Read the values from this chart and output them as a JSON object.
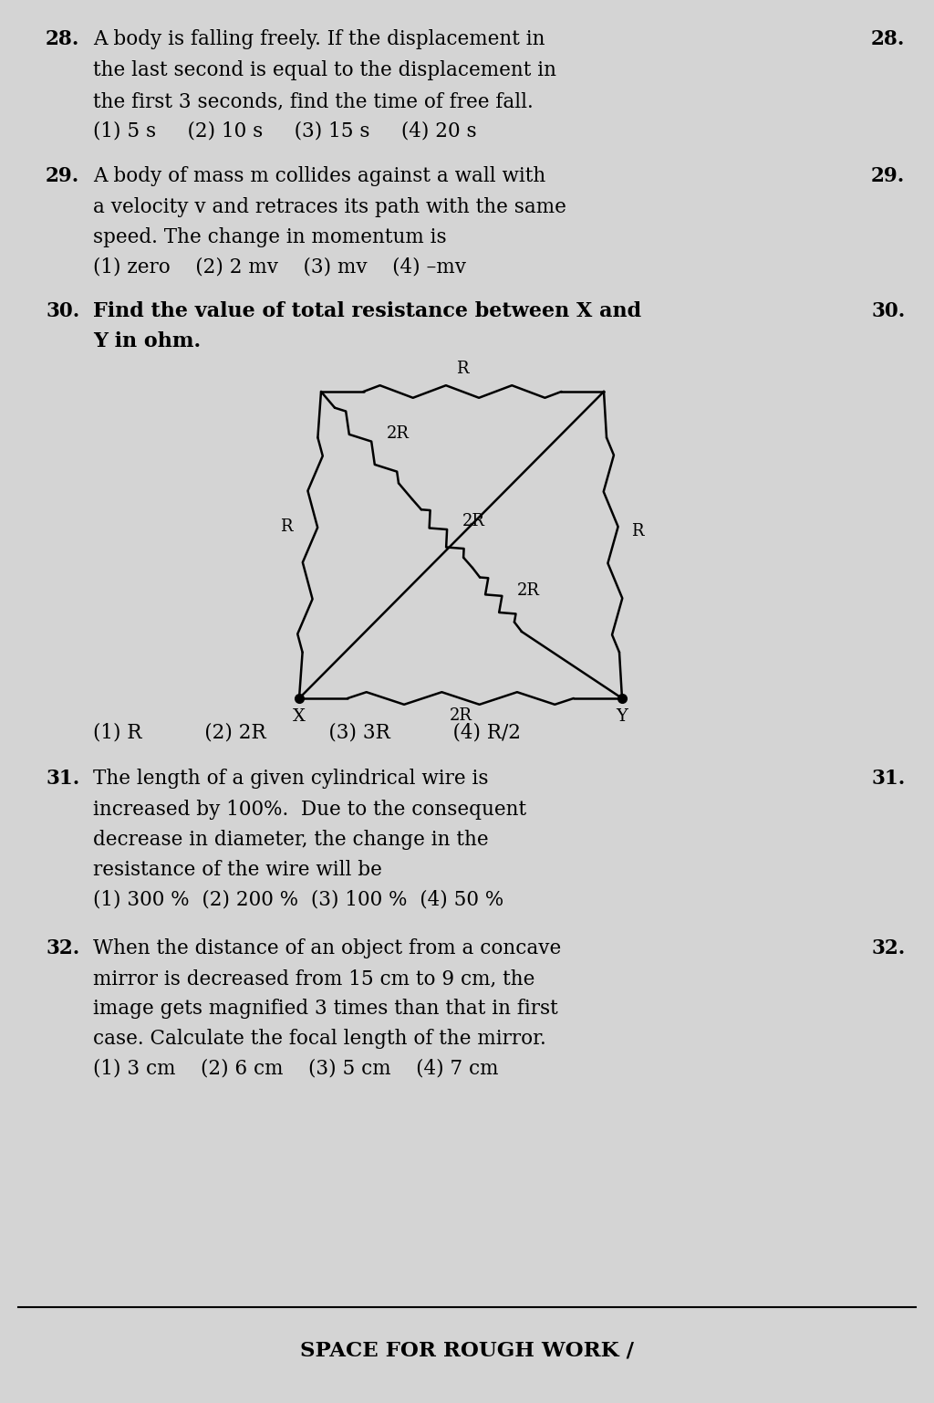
{
  "bg_color": "#d4d4d4",
  "text_color": "#000000",
  "font_family": "serif",
  "q28_num": "28.",
  "q28_text_line1": "A body is falling freely. If the displacement in",
  "q28_text_right": "28.",
  "q28_text_line2": "the last second is equal to the displacement in",
  "q28_text_line3": "the first 3 seconds, find the time of free fall.",
  "q28_options": "(1) 5 s     (2) 10 s     (3) 15 s     (4) 20 s",
  "q29_num": "29.",
  "q29_text_line1": "A body of mass m collides against a wall with",
  "q29_text_right": "29.",
  "q29_text_line2": "a velocity v and retraces its path with the same",
  "q29_text_line3": "speed. The change in momentum is",
  "q29_options": "(1) zero    (2) 2 mv    (3) mv    (4) –mv",
  "q30_num": "30.",
  "q30_text_line1": "Find the value of total resistance between X and",
  "q30_text_right": "30.",
  "q30_text_line2": "Y in ohm.",
  "q30_options": "(1) R          (2) 2R          (3) 3R          (4) R/2",
  "q31_num": "31.",
  "q31_text_line1": "The length of a given cylindrical wire is",
  "q31_text_right": "31.",
  "q31_text_line2": "increased by 100%.  Due to the consequent",
  "q31_text_line3": "decrease in diameter, the change in the",
  "q31_text_line4": "resistance of the wire will be",
  "q31_options": "(1) 300 %  (2) 200 %  (3) 100 %  (4) 50 %",
  "q32_num": "32.",
  "q32_text_line1": "When the distance of an object from a concave",
  "q32_text_right": "32.",
  "q32_text_line2": "mirror is decreased from 15 cm to 9 cm, the",
  "q32_text_line3": "image gets magnified 3 times than that in first",
  "q32_text_line4": "case. Calculate the focal length of the mirror.",
  "q32_options": "(1) 3 cm    (2) 6 cm    (3) 5 cm    (4) 7 cm",
  "footer": "SPACE FOR ROUGH WORK /",
  "main_font_size": 15.5,
  "circ_label_size": 13.0
}
